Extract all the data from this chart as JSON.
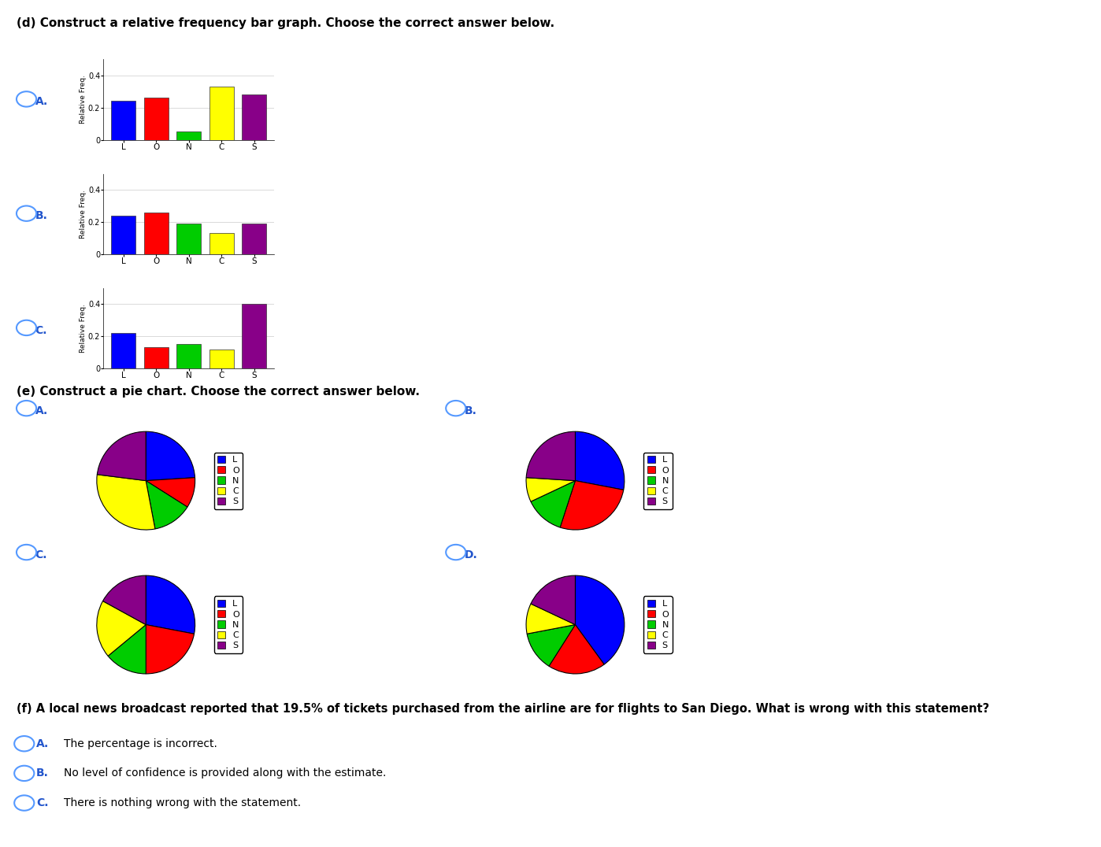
{
  "title_d": "(d) Construct a relative frequency bar graph. Choose the correct answer below.",
  "title_e": "(e) Construct a pie chart. Choose the correct answer below.",
  "title_f": "(f) A local news broadcast reported that 19.5% of tickets purchased from the airline are for flights to San Diego. What is wrong with this statement?",
  "categories": [
    "L",
    "O",
    "N",
    "C",
    "S"
  ],
  "bar_colors": [
    "#0000FF",
    "#FF0000",
    "#00CC00",
    "#FFFF00",
    "#880088"
  ],
  "bar_A": [
    0.24,
    0.26,
    0.05,
    0.33,
    0.28
  ],
  "bar_B": [
    0.24,
    0.26,
    0.19,
    0.13,
    0.19
  ],
  "bar_C": [
    0.22,
    0.13,
    0.15,
    0.12,
    0.4
  ],
  "pie_colors": [
    "#0000FF",
    "#FF0000",
    "#00CC00",
    "#FFFF00",
    "#880088"
  ],
  "pie_A_slices": [
    0.24,
    0.1,
    0.13,
    0.3,
    0.23
  ],
  "pie_B_slices": [
    0.28,
    0.27,
    0.13,
    0.08,
    0.24
  ],
  "pie_C_slices": [
    0.28,
    0.22,
    0.14,
    0.19,
    0.17
  ],
  "pie_D_slices": [
    0.4,
    0.19,
    0.13,
    0.1,
    0.18
  ],
  "circle_color": "#5599FF",
  "label_color": "#2255CC",
  "bg_color": "#FFFFFF",
  "text_color": "#000000",
  "answer_label_color": "#2255CC",
  "ylabel": "Relative Freq."
}
